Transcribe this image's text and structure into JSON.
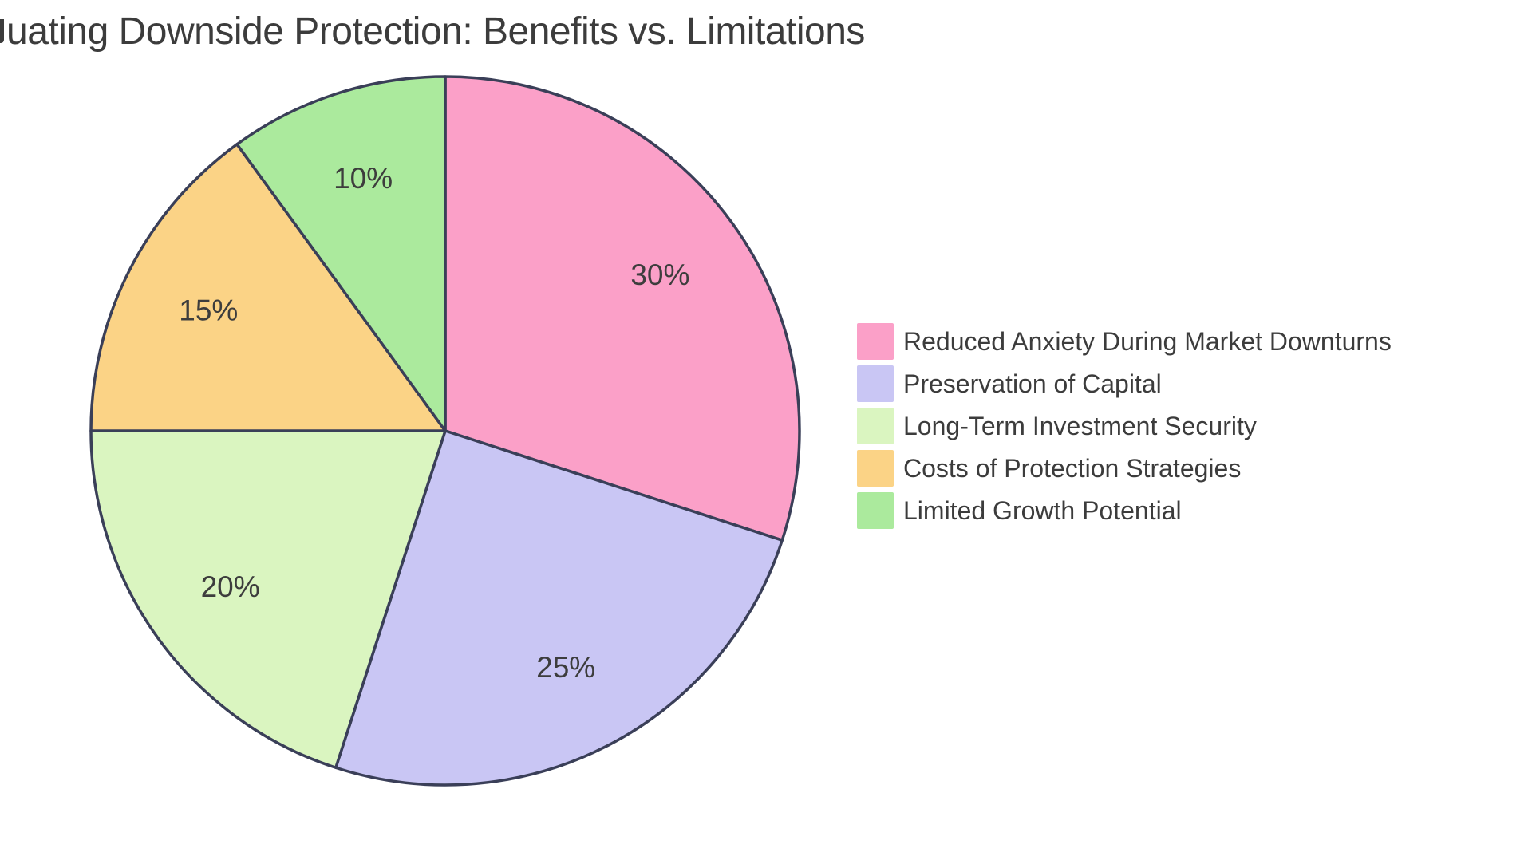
{
  "page": {
    "background_color": "#ffffff"
  },
  "chart_data": {
    "type": "pie",
    "title": "uating Downside Protection: Benefits vs. Limitations",
    "title_color": "#3c3c3c",
    "start_angle_deg": -90,
    "direction": "clockwise",
    "stroke_color": "#3a3f58",
    "stroke_width": 3.5,
    "pct_label_color": "#3d3d3d",
    "legend_position": "right",
    "slices": [
      {
        "label": "Reduced Anxiety During Market Downturns",
        "value": 30,
        "pct_label": "30%",
        "color": "#fba0c8"
      },
      {
        "label": "Preservation of Capital",
        "value": 25,
        "pct_label": "25%",
        "color": "#c9c6f4"
      },
      {
        "label": "Long-Term Investment Security",
        "value": 20,
        "pct_label": "20%",
        "color": "#daf5c0"
      },
      {
        "label": "Costs of Protection Strategies",
        "value": 15,
        "pct_label": "15%",
        "color": "#fbd386"
      },
      {
        "label": "Limited Growth Potential",
        "value": 10,
        "pct_label": "10%",
        "color": "#abea9d"
      }
    ]
  }
}
